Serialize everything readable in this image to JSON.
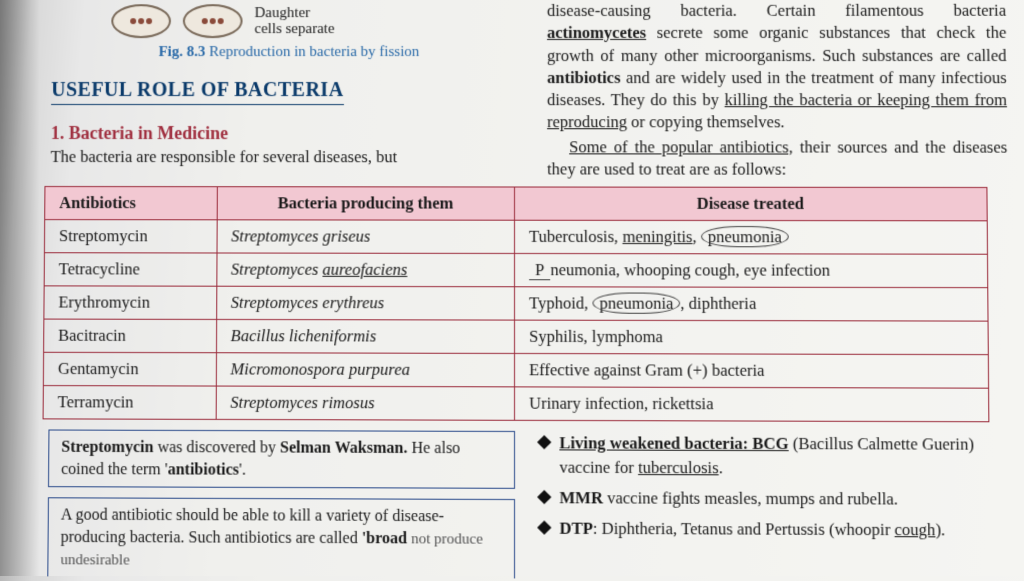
{
  "figure": {
    "label_line1": "Daughter",
    "label_line2": "cells separate",
    "caption_num": "Fig. 8.3",
    "caption_text": "Reproduction in bacteria by fission"
  },
  "section_title": "USEFUL ROLE OF BACTERIA",
  "sub_title": "1. Bacteria in Medicine",
  "left_intro": "The bacteria are responsible for several diseases, but",
  "right_para_html": "disease-causing bacteria. Certain filamentous bacteria <b class='uline'>actinomycetes</b> secrete some organic substances that check the growth of many other microorganisms. Such substances are called <b>antibiotics</b> and are widely used in the treatment of many infectious diseases. They do this by <span class='uline'>killing the bacteria or keeping them from reproducing</span> or copying themselves.",
  "right_para2_html": "<span class='uline'>Some of the popular antibiotics,</span> their sources and the diseases they are used to treat are as follows:",
  "table": {
    "headers": [
      "Antibiotics",
      "Bacteria producing them",
      "Disease treated"
    ],
    "rows": [
      [
        "Streptomycin",
        "<span class='it'>Streptomyces griseus</span>",
        "Tuberculosis, <span class='uline'>meningitis</span>, <span class='circ'>pneumonia</span>"
      ],
      [
        "Tetracycline",
        "<span class='it'>Streptomyces <span class='uline'>aureofaciens</span></span>",
        "<span class='circ' style='border:none;border-bottom:1.5px solid #444;border-radius:0'>P</span>neumonia, whooping cough, eye infection"
      ],
      [
        "Erythromycin",
        "<span class='it'>Streptomyces erythreus</span>",
        "Typhoid, <span class='circ'>pneumonia</span>, diphtheria"
      ],
      [
        "Bacitracin",
        "<span class='it'>Bacillus licheniformis</span>",
        "Syphilis, lymphoma"
      ],
      [
        "Gentamycin",
        "<span class='it'>Micromonospora purpurea</span>",
        "Effective against Gram (+) bacteria"
      ],
      [
        "Terramycin",
        "<span class='it'>Streptomyces rimosus</span>",
        "Urinary infection, rickettsia"
      ]
    ]
  },
  "box1_html": "<b>Streptomycin</b> was discovered by <b>Selman Waksman.</b> He also coined the term '<b>antibiotics</b>'.",
  "box2_html": "A good antibiotic should be able to kill a variety of disease-producing bacteria. Such antibiotics are called <b>'broad</b> ",
  "box2_tail": "not produce undesirable",
  "bullets": [
    "<span class='uline bold'>Living weakened bacteria: BCG</span> (Bacillus Calmette Guerin) vaccine for <span class='uline'>tuberculosis</span>.",
    "<b>MMR</b> vaccine fights measles, mumps and rubella.",
    "<b>DTP</b>: Diphtheria, Tetanus and Pertussis (whoopir <span class='uline'>cough</span>)."
  ]
}
